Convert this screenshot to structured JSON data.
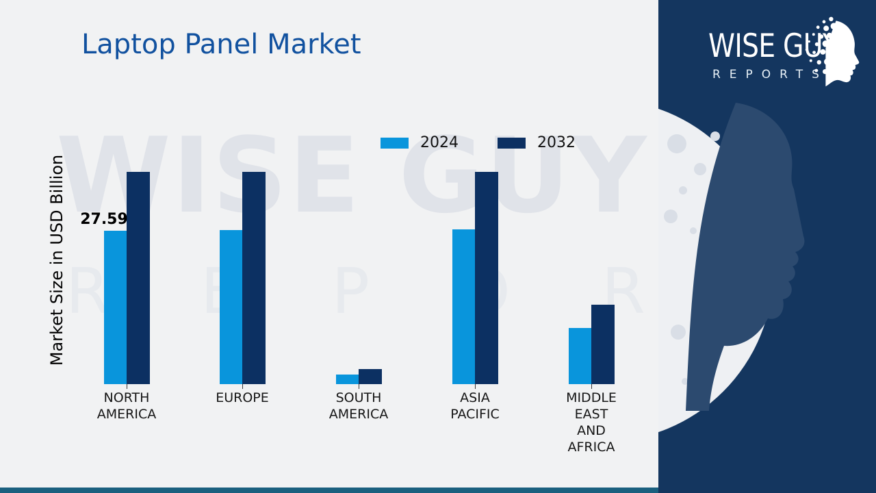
{
  "page": {
    "title": "Laptop Panel Market",
    "title_color": "#11519f",
    "background_color": "#f1f2f3",
    "bottom_strip_color": "#1b607f",
    "panel_color": "#14365f"
  },
  "logo": {
    "name": "WISE GUY",
    "sub": "REPORTS",
    "face_icon": "dotted-face-profile-icon"
  },
  "watermark": {
    "line1": "WISE GUY",
    "line2": "R E P O R T S"
  },
  "chart_data": {
    "type": "bar",
    "title": "Laptop Panel Market",
    "xlabel": "",
    "ylabel": "Market Size in USD Billion",
    "categories": [
      "NORTH AMERICA",
      "EUROPE",
      "SOUTH AMERICA",
      "ASIA PACIFIC",
      "MIDDLE EAST AND AFRICA"
    ],
    "category_lines": [
      [
        "NORTH",
        "AMERICA"
      ],
      [
        "EUROPE"
      ],
      [
        "SOUTH",
        "AMERICA"
      ],
      [
        "ASIA",
        "PACIFIC"
      ],
      [
        "MIDDLE",
        "EAST",
        "AND",
        "AFRICA"
      ]
    ],
    "series": [
      {
        "name": "2024",
        "color": "#0995dc",
        "values": [
          27.59,
          27.7,
          1.7,
          27.8,
          10.1
        ]
      },
      {
        "name": "2032",
        "color": "#0c3062",
        "values": [
          38.2,
          38.2,
          2.7,
          38.2,
          14.3
        ]
      }
    ],
    "annotations": [
      {
        "text": "27.59",
        "category": "NORTH AMERICA",
        "series": "2024",
        "value": 27.59
      }
    ],
    "ylim": [
      0,
      40
    ],
    "grid": false,
    "legend_position": "top-center",
    "legend_labels": [
      "2024",
      "2032"
    ]
  }
}
